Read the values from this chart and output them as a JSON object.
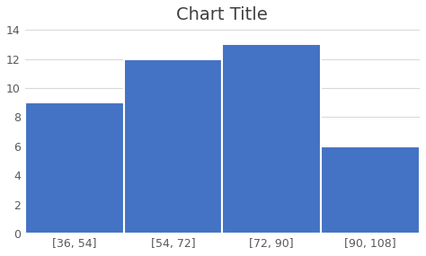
{
  "title": "Chart Title",
  "title_fontsize": 14,
  "categories": [
    "[36, 54]",
    "[54, 72]",
    "[72, 90]",
    "[90, 108]"
  ],
  "values": [
    9,
    12,
    13,
    6
  ],
  "bar_color": "#4472C4",
  "bar_edge_color": "#ffffff",
  "bar_edge_width": 1.5,
  "ylim": [
    0,
    14
  ],
  "yticks": [
    0,
    2,
    4,
    6,
    8,
    10,
    12,
    14
  ],
  "background_color": "#ffffff",
  "plot_bg_color": "#ffffff",
  "grid_color": "#d9d9d9",
  "tick_color": "#595959",
  "tick_fontsize": 9
}
